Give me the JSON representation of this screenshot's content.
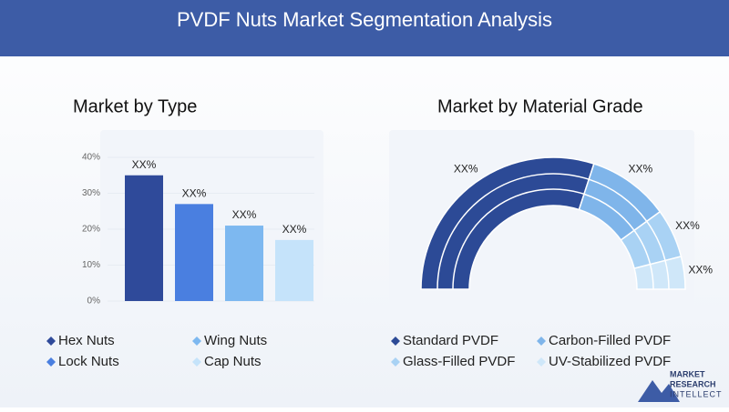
{
  "header": {
    "title": "PVDF Nuts Market Segmentation Analysis"
  },
  "chart_data": [
    {
      "type": "bar",
      "title": "Market by Type",
      "categories": [
        "Hex Nuts",
        "Lock Nuts",
        "Wing Nuts",
        "Cap Nuts"
      ],
      "values": [
        35,
        27,
        21,
        17
      ],
      "value_labels": [
        "XX%",
        "XX%",
        "XX%",
        "XX%"
      ],
      "colors": [
        "#2f4a9a",
        "#4a7fe0",
        "#7db8f0",
        "#c5e3fa"
      ],
      "ylim": [
        0,
        40
      ],
      "yticks": [
        {
          "value": 0,
          "label": "0%"
        },
        {
          "value": 10,
          "label": "10%"
        },
        {
          "value": 20,
          "label": "20%"
        },
        {
          "value": 30,
          "label": "30%"
        },
        {
          "value": 40,
          "label": "40%"
        }
      ]
    },
    {
      "type": "pie",
      "title": "Market by Material Grade",
      "categories": [
        "Standard PVDF",
        "Carbon-Filled PVDF",
        "Glass-Filled PVDF",
        "UV-Stabilized PVDF"
      ],
      "values": [
        60,
        20,
        12,
        8
      ],
      "value_labels": [
        "XX%",
        "XX%",
        "XX%",
        "XX%"
      ],
      "colors": [
        "#2c4a96",
        "#7fb5ea",
        "#a9d2f4",
        "#cfe7f9"
      ]
    }
  ],
  "logo": {
    "line1": "MARKET",
    "line2": "RESEARCH",
    "line3": "INTELLECT"
  }
}
